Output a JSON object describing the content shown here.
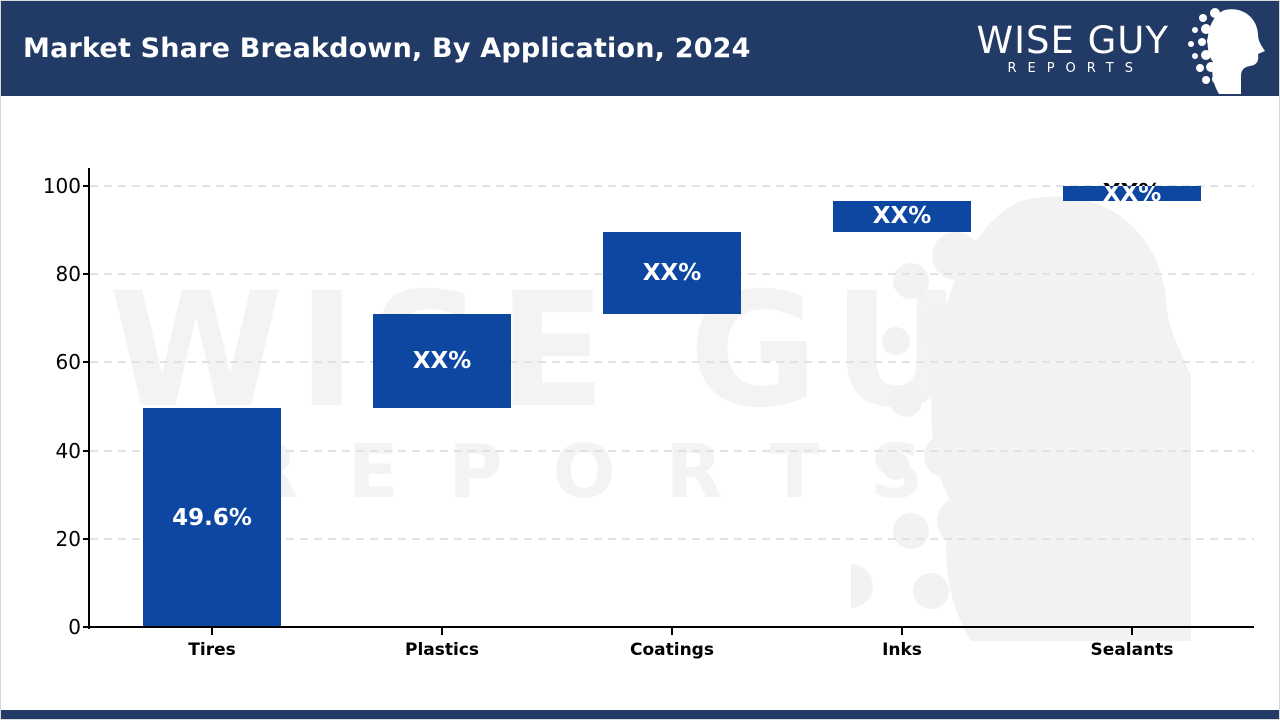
{
  "header": {
    "title": "Market Share Breakdown, By Application, 2024",
    "logo_line1": "WISE GUY",
    "logo_line2": "REPORTS",
    "bg_color": "#213a66"
  },
  "watermark": {
    "line1": "WISE GUY",
    "line2": "REPORTS"
  },
  "chart_data": {
    "type": "bar",
    "subtype": "waterfall",
    "title": "Market Share Breakdown, By Application, 2024",
    "categories": [
      "Tires",
      "Plastics",
      "Coatings",
      "Inks",
      "Sealants"
    ],
    "bars": [
      {
        "category": "Tires",
        "start": 0,
        "end": 49.6,
        "label": "49.6%"
      },
      {
        "category": "Plastics",
        "start": 49.6,
        "end": 71.0,
        "label": "XX%"
      },
      {
        "category": "Coatings",
        "start": 71.0,
        "end": 89.6,
        "label": "XX%"
      },
      {
        "category": "Inks",
        "start": 89.6,
        "end": 96.6,
        "label": "XX%"
      },
      {
        "category": "Sealants",
        "start": 96.6,
        "end": 100.0,
        "label": "XX%"
      }
    ],
    "ylim": [
      0,
      100
    ],
    "yticks": [
      0,
      20,
      40,
      60,
      80,
      100
    ],
    "grid": "horizontal-dashed",
    "legend": "none",
    "bar_color": "#0d47a1",
    "bar_label_color": "#ffffff",
    "axis_color": "#000000",
    "gridline_color": "#e2e2e2"
  }
}
